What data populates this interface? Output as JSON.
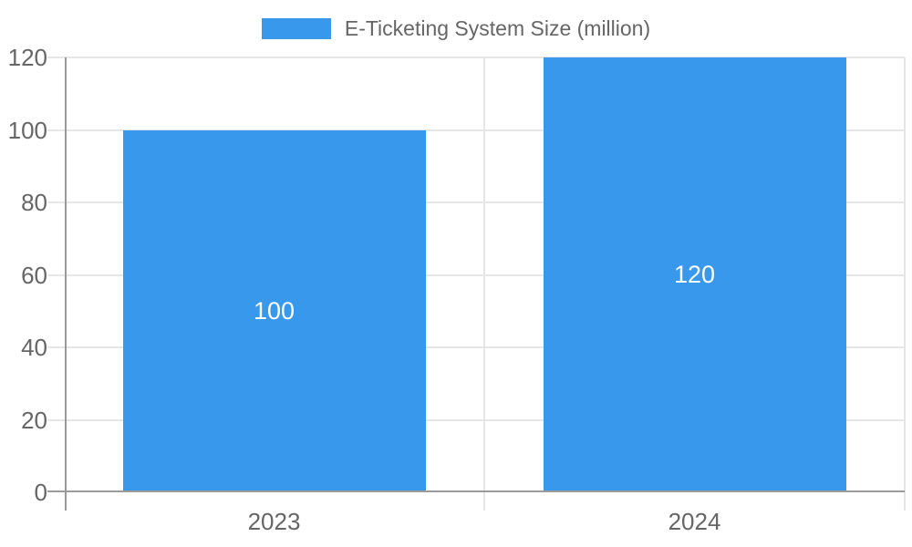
{
  "legend": {
    "label": "E-Ticketing System Size (million)"
  },
  "chart_data": {
    "type": "bar",
    "title": "",
    "categories": [
      "2023",
      "2024"
    ],
    "series": [
      {
        "name": "E-Ticketing System Size (million)",
        "values": [
          100,
          120
        ]
      }
    ],
    "data_labels": [
      "100",
      "120"
    ],
    "yticks": [
      0,
      20,
      40,
      60,
      80,
      100,
      120
    ],
    "ylim": [
      0,
      120
    ],
    "xlabel": "",
    "ylabel": "",
    "grid": true,
    "legend_position": "top"
  },
  "colors": {
    "bar": "#3898EC",
    "grid": "#E6E6E6",
    "axis": "#9B9B9B",
    "tick_text": "#666666",
    "legend_text": "#666666",
    "data_label_text": "#FFFFFF",
    "background": "#FFFFFF"
  }
}
